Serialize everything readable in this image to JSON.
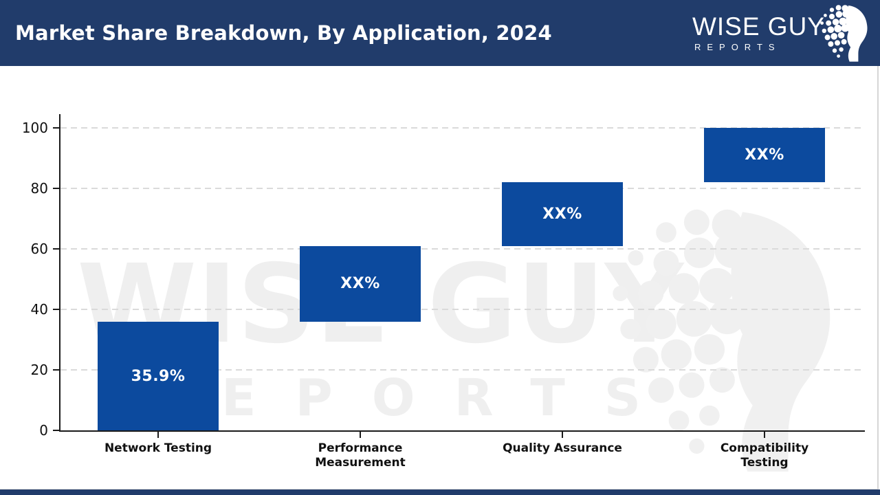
{
  "header": {
    "title": "Market Share Breakdown, By Application, 2024",
    "logo": {
      "line1": "WISE GUY",
      "line2": "REPORTS"
    }
  },
  "watermark": {
    "line1": "WISE GUY",
    "line2": "REPORTS"
  },
  "colors": {
    "header_navy": "#213c6b",
    "bar_blue": "#0c4a9e",
    "grid_gray": "#dadada",
    "watermark_gray": "#f0f0f0",
    "axis_black": "#1a1a1a",
    "bar_label_white": "#ffffff"
  },
  "chart_data": {
    "type": "bar",
    "subtype": "floating-waterfall-segments",
    "title": "Market Share Breakdown, By Application, 2024",
    "categories": [
      "Network Testing",
      "Performance Measurement",
      "Quality Assurance",
      "Compatibility Testing"
    ],
    "segments": [
      {
        "category": "Network Testing",
        "start": 0,
        "end": 35.9,
        "value_label": "35.9%",
        "label_lines": [
          "Network Testing"
        ]
      },
      {
        "category": "Performance Measurement",
        "start": 35.9,
        "end": 61,
        "value_label": "XX%",
        "label_lines": [
          "Performance",
          "Measurement"
        ]
      },
      {
        "category": "Quality Assurance",
        "start": 61,
        "end": 82,
        "value_label": "XX%",
        "label_lines": [
          "Quality Assurance"
        ]
      },
      {
        "category": "Compatibility Testing",
        "start": 82,
        "end": 100,
        "value_label": "XX%",
        "label_lines": [
          "Compatibility",
          "Testing"
        ]
      }
    ],
    "y_axis": {
      "ticks": [
        0,
        20,
        40,
        60,
        80,
        100
      ],
      "range": [
        0,
        104.5
      ]
    },
    "grid": "horizontal dashed",
    "legend": "none"
  }
}
